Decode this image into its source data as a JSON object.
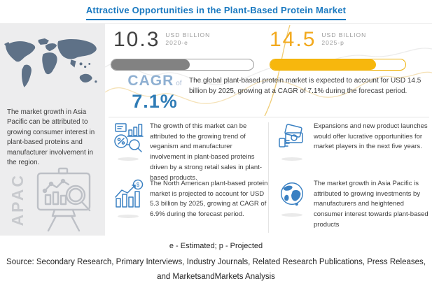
{
  "title": "Attractive Opportunities in the Plant-Based Protein Market",
  "sidebar": {
    "text": "The market growth in Asia Pacific can be attributed to growing consumer interest in plant-based proteins and manufacturer involvement in the region.",
    "region_label": "APAC"
  },
  "stats": {
    "current": {
      "value": "10.3",
      "unit": "USD BILLION",
      "year": "2020-e",
      "fill_percent": 55,
      "bar_color": "#828282"
    },
    "projected": {
      "value": "14.5",
      "unit": "USD BILLION",
      "year": "2025-p",
      "fill_percent": 78,
      "bar_color": "#f7b70d"
    }
  },
  "cagr": {
    "label": "CAGR",
    "of_label": "of",
    "value": "7.1%"
  },
  "summary": "The global plant-based protein market is expected to account for USD 14.5 billion by 2025, growing at a CAGR of 7.1% during the forecast period.",
  "info_boxes": [
    {
      "icon": "market-growth-analysis-icon",
      "text": "The growth of this market can be attributed to the growing trend of veganism and manufacturer involvement in plant-based proteins driven by a strong retail sales in plant-based products."
    },
    {
      "icon": "cash-hand-icon",
      "text": "Expansions and new product launches would offer lucrative opportunities for market players in the next five years."
    },
    {
      "icon": "bar-chart-dollar-icon",
      "text": "The North American plant-based protein market is projected to account for USD 5.3 billion by 2025, growing at CAGR of 6.9% during the forecast period."
    },
    {
      "icon": "globe-icon",
      "text": "The market growth in Asia Pacific is attributed to growing investments by manufacturers and heightened consumer interest towards plant-based products"
    }
  ],
  "footer": {
    "legend": "e - Estimated; p - Projected",
    "source": "Source: Secondary Research, Primary Interviews, Industry Journals, Related Research Publications, Press Releases, and MarketsandMarkets Analysis"
  },
  "colors": {
    "title_blue": "#1a79c0",
    "number_orange": "#f2a91d",
    "bar_gray": "#828282",
    "bar_yellow": "#f7b70d",
    "cagr_blue": "#2f7cb6",
    "icon_blue": "#3a80c2",
    "map_slate": "#5e7187",
    "sidebar_bg": "#ededee"
  },
  "chart_data": {
    "type": "bar",
    "categories": [
      "2020-e",
      "2025-p"
    ],
    "values": [
      10.3,
      14.5
    ],
    "title": "Attractive Opportunities in the Plant-Based Protein Market",
    "xlabel": "",
    "ylabel": "USD Billion",
    "ylim": [
      0,
      18.5
    ],
    "annotations": [
      "CAGR of 7.1% (2020-2025)",
      "North America: USD 5.3 billion by 2025 at CAGR of 6.9%"
    ],
    "legend_position": "none",
    "grid": false
  }
}
